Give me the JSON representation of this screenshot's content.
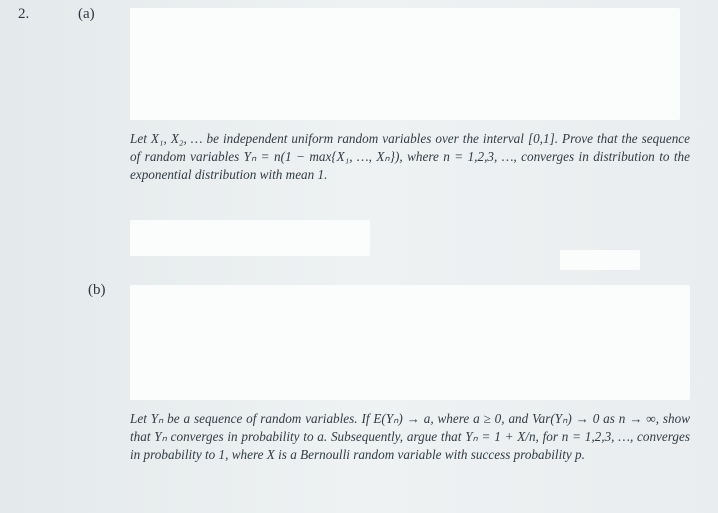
{
  "background_color": "#e8ecee",
  "text_color": "#2a3640",
  "font_family": "Times New Roman",
  "font_size_body": 13.2,
  "font_size_label": 15,
  "question": {
    "number": "2.",
    "parts": {
      "a": {
        "label": "(a)",
        "text": "Let X₁, X₂, … be independent uniform random variables over the interval [0,1]. Prove that the sequence of random variables Yₙ = n(1 − max{X₁, …, Xₙ}), where n = 1,2,3, …, converges in distribution to the exponential distribution with mean 1."
      },
      "b": {
        "label": "(b)",
        "text": "Let Yₙ be a sequence of random variables. If E(Yₙ) → a, where a ≥ 0, and Var(Yₙ) → 0 as n → ∞, show that Yₙ converges in probability to a. Subsequently, argue that Yₙ = 1 + X/n, for n = 1,2,3, …, converges in probability to 1, where X is a Bernoulli random variable with success probability p."
      }
    }
  }
}
